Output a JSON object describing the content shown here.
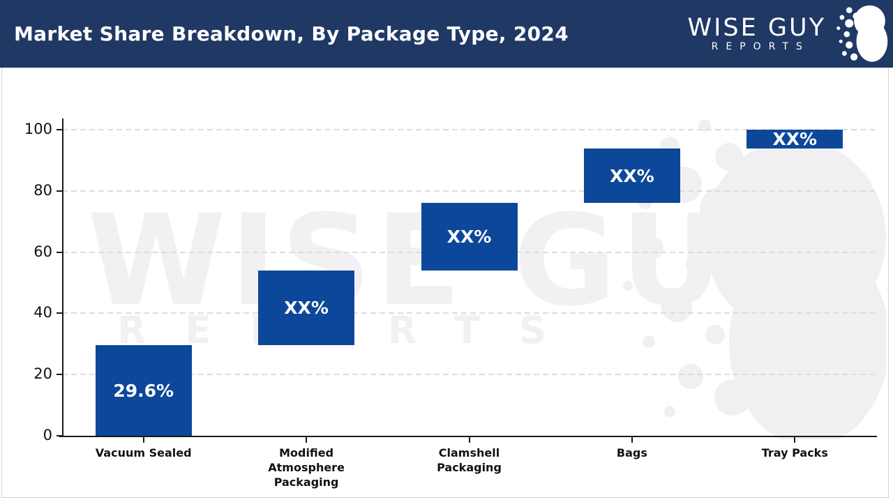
{
  "header": {
    "title": "Market Share Breakdown, By Package Type, 2024",
    "logo_line1": "WISE GUY",
    "logo_line2": "REPORTS"
  },
  "watermark": {
    "line1": "WISE GUY",
    "line2": "REPORTS"
  },
  "colors": {
    "header_bg": "#203864",
    "bar_blue": "#0d4799",
    "grid_gray": "#dcdcdc",
    "axis_black": "#1a1a1a",
    "watermark_gray": "#f1f1f4"
  },
  "chart_data": {
    "type": "bar",
    "subtype": "waterfall-floating-bars",
    "title": "Market Share Breakdown, By Package Type, 2024",
    "xlabel": "",
    "ylabel": "",
    "ylim": [
      0,
      100
    ],
    "yticks": [
      0,
      20,
      40,
      60,
      80,
      100
    ],
    "grid": "dashed horizontal",
    "legend": "none",
    "categories": [
      "Vacuum Sealed",
      "Modified Atmosphere Packaging",
      "Clamshell Packaging",
      "Bags",
      "Tray Packs"
    ],
    "segments": [
      {
        "category": "Vacuum Sealed",
        "start": 0,
        "end": 29.6,
        "value": 29.6,
        "label": "29.6%"
      },
      {
        "category": "Modified Atmosphere Packaging",
        "start": 29.6,
        "end": 54.1,
        "value": 24.5,
        "label": "XX%"
      },
      {
        "category": "Clamshell Packaging",
        "start": 54.1,
        "end": 76.0,
        "value": 21.9,
        "label": "XX%"
      },
      {
        "category": "Bags",
        "start": 76.0,
        "end": 93.8,
        "value": 17.8,
        "label": "XX%"
      },
      {
        "category": "Tray Packs",
        "start": 93.8,
        "end": 100.0,
        "value": 6.2,
        "label": "XX%"
      }
    ]
  }
}
